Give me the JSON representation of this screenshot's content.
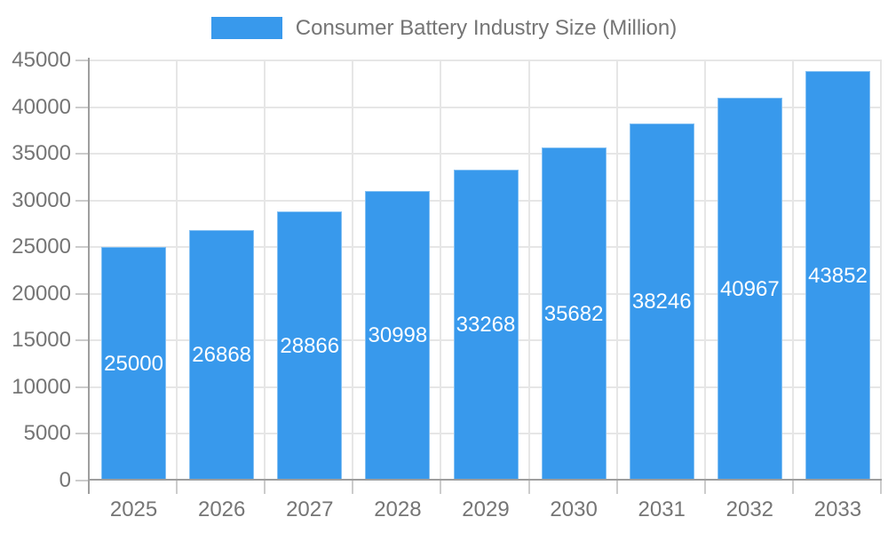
{
  "chart_data": {
    "type": "bar",
    "title": "Consumer Battery Industry Size (Million)",
    "categories": [
      "2025",
      "2026",
      "2027",
      "2028",
      "2029",
      "2030",
      "2031",
      "2032",
      "2033"
    ],
    "values": [
      25000,
      26868,
      28866,
      30998,
      33268,
      35682,
      38246,
      40967,
      43852
    ],
    "bar_labels": [
      "25000",
      "26868",
      "28866",
      "30998",
      "33268",
      "35682",
      "38246",
      "40967",
      "43852"
    ],
    "xlabel": "",
    "ylabel": "",
    "ylim": [
      0,
      45000
    ],
    "yticks": [
      0,
      5000,
      10000,
      15000,
      20000,
      25000,
      30000,
      35000,
      40000,
      45000
    ],
    "grid": true,
    "legend_position": "top-center",
    "colors": {
      "bar": "#3899EC",
      "bar_label_text": "#ffffff",
      "axis_text": "#757575",
      "gridline": "#e6e6e6",
      "axis_line": "#9e9e9e",
      "tick": "#cccccc",
      "background": "#ffffff"
    }
  },
  "legend": {
    "label": "Consumer Battery Industry Size (Million)"
  }
}
